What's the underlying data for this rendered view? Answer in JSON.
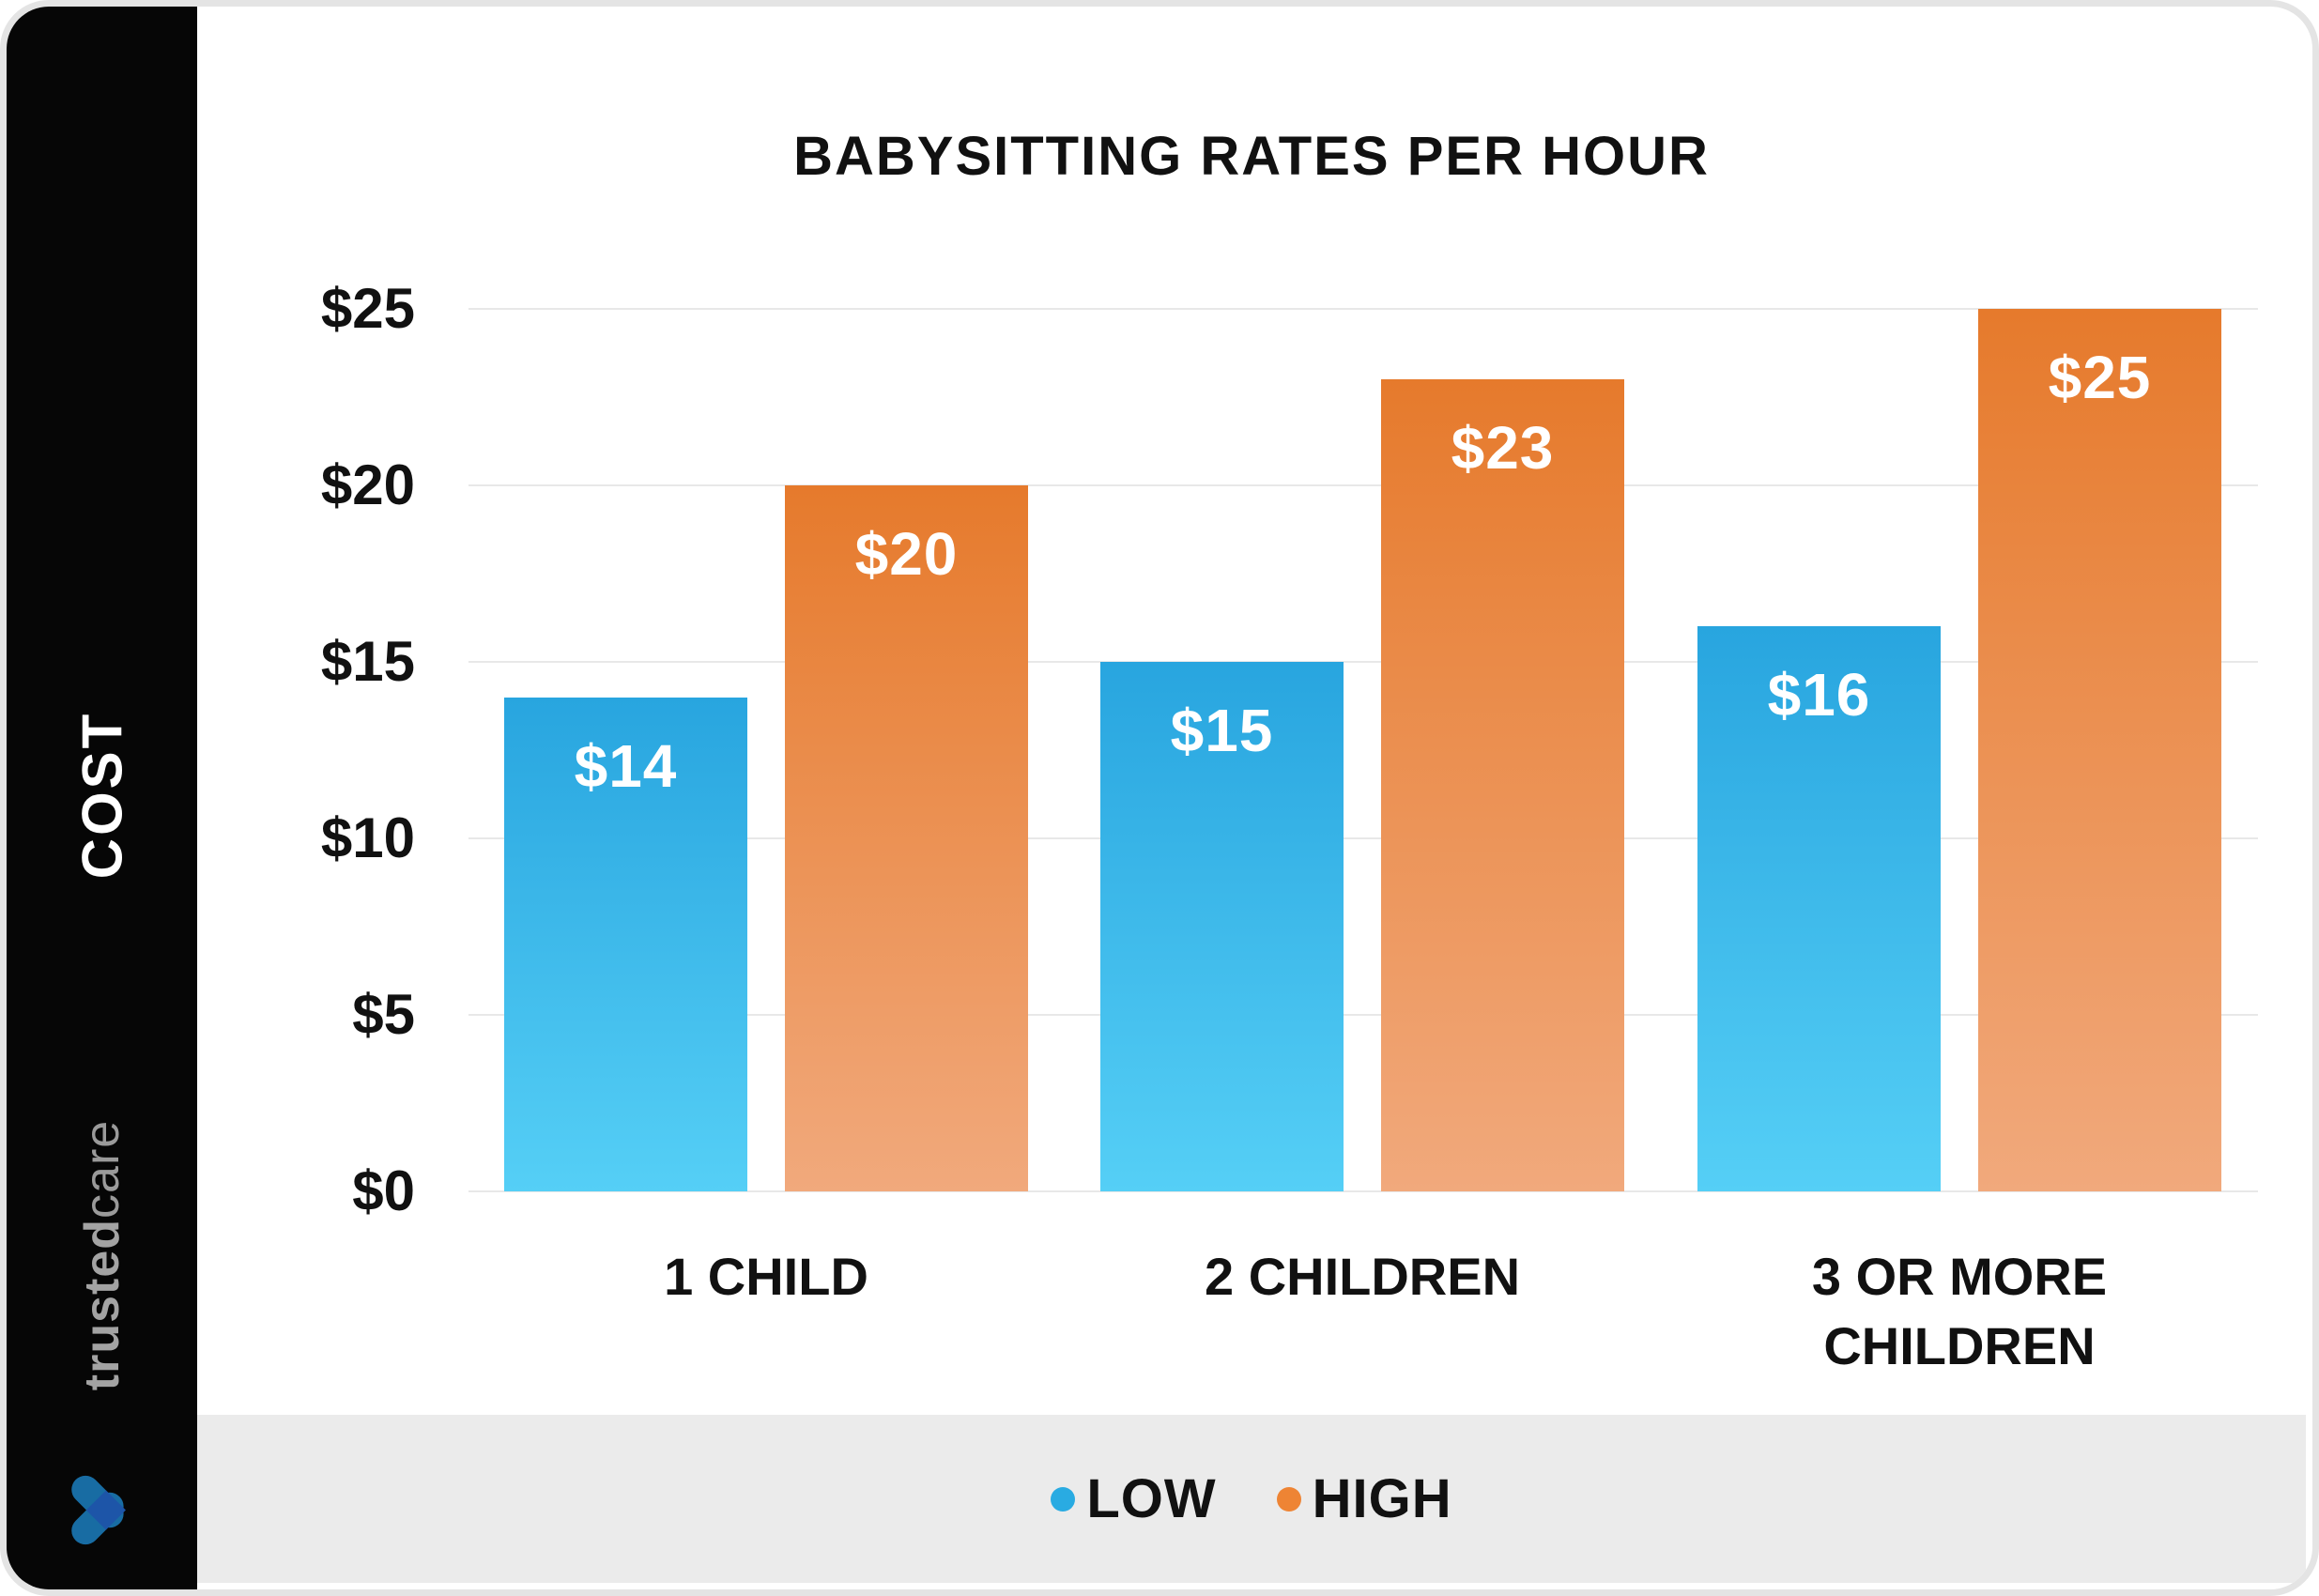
{
  "sidebar": {
    "cost_label": "COST",
    "brand_bold": "trusted",
    "brand_light": "care"
  },
  "chart_data": {
    "type": "bar",
    "title": "BABYSITTING RATES PER HOUR",
    "categories": [
      "1 CHILD",
      "2 CHILDREN",
      "3 OR MORE CHILDREN"
    ],
    "series": [
      {
        "name": "LOW",
        "color": "#29abe2",
        "values": [
          14,
          15,
          16
        ],
        "value_labels": [
          "$14",
          "$15",
          "$16"
        ]
      },
      {
        "name": "HIGH",
        "color": "#ee8434",
        "values": [
          20,
          23,
          25
        ],
        "value_labels": [
          "$20",
          "$23",
          "$25"
        ]
      }
    ],
    "ylabel": "COST",
    "ylim": [
      0,
      25
    ],
    "yticks": [
      {
        "label": "$25",
        "value": 25
      },
      {
        "label": "$20",
        "value": 20
      },
      {
        "label": "$15",
        "value": 15
      },
      {
        "label": "$10",
        "value": 10
      },
      {
        "label": "$5",
        "value": 5
      },
      {
        "label": "$0",
        "value": 0
      }
    ],
    "grid": true,
    "legend_position": "bottom"
  }
}
